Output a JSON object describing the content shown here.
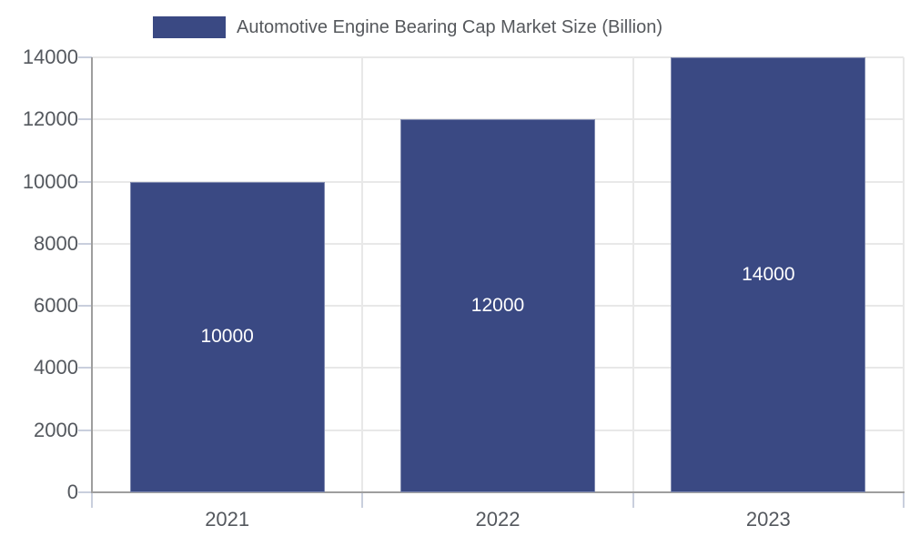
{
  "chart_data": {
    "type": "bar",
    "legend_label": "Automotive Engine Bearing Cap Market Size (Billion)",
    "categories": [
      "2021",
      "2022",
      "2023"
    ],
    "values": [
      10000,
      12000,
      14000
    ],
    "ylim": [
      0,
      14000
    ],
    "yticks": [
      0,
      2000,
      4000,
      6000,
      8000,
      10000,
      12000,
      14000
    ],
    "grid": true,
    "legend_position": "top-left",
    "bar_label_position": "center-inside",
    "colors": {
      "bar": "#3A4983",
      "bar_value_text": "#FFFFFF",
      "axis_text": "#54585E",
      "legend_text": "#55585C",
      "gridline": "#E8E8E8",
      "axis_line": "#9E9E9E",
      "tick_mark": "#C9CFDD",
      "background": "#FFFFFF"
    }
  }
}
